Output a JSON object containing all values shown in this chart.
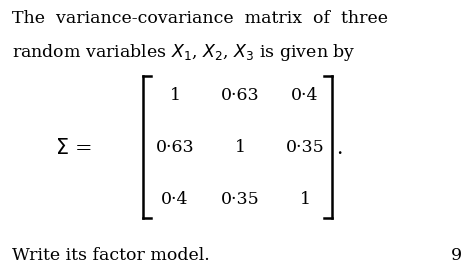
{
  "bg_color": "#ffffff",
  "text_color": "#000000",
  "line1": "The  variance-covariance  matrix  of  three",
  "line2": "random variables $X_1$, $X_2$, $X_3$ is given by",
  "sigma_label": "$\\Sigma$ =",
  "matrix": [
    [
      "1",
      "0·63",
      "0·4"
    ],
    [
      "0·63",
      "1",
      "0·35"
    ],
    [
      "0·4",
      "0·35",
      "1"
    ]
  ],
  "footer": "Write its factor model.",
  "page_num": "9",
  "fs_main": 12.5,
  "fs_matrix": 12.5,
  "fs_sigma": 15
}
